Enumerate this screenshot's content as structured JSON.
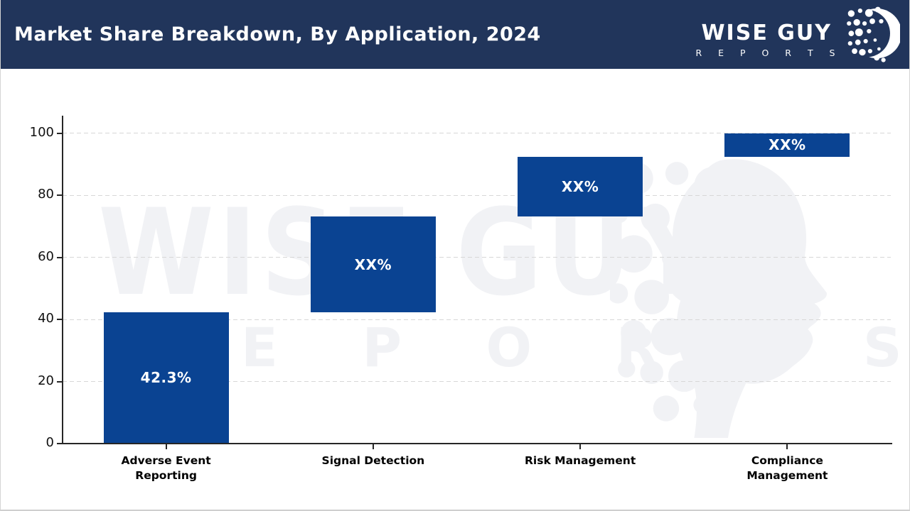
{
  "header": {
    "title": "Market Share Breakdown, By Application, 2024",
    "bg_color": "#21355B",
    "logo": {
      "line1": "WISE GUY",
      "line2": "R E P O R T S",
      "head_icon": "dotted-head-profile-icon"
    }
  },
  "watermark": {
    "line1": "WISE GUY",
    "line2": "R E P O R T S",
    "head_icon": "dotted-head-profile-watermark",
    "color": "#f1f2f5"
  },
  "chart_data": {
    "type": "bar",
    "subtype": "waterfall-stacked",
    "title": "",
    "xlabel": "",
    "ylabel": "",
    "categories": [
      "Adverse Event Reporting",
      "Signal Detection",
      "Risk Management",
      "Compliance Management"
    ],
    "segments": [
      {
        "category": "Adverse Event Reporting",
        "start": 0,
        "end": 42.3,
        "label": "42.3%"
      },
      {
        "category": "Signal Detection",
        "start": 42.3,
        "end": 73.1,
        "label": "XX%"
      },
      {
        "category": "Risk Management",
        "start": 73.1,
        "end": 92.3,
        "label": "XX%"
      },
      {
        "category": "Compliance Management",
        "start": 92.3,
        "end": 100,
        "label": "XX%"
      }
    ],
    "yticks": [
      0,
      20,
      40,
      60,
      80,
      100
    ],
    "ylim": [
      0,
      105
    ],
    "grid": "horizontal-dashed",
    "legend": "none",
    "bar_color": "#0a4392",
    "bar_label_color": "#ffffff",
    "axis_color": "#262626",
    "gridline_color": "#d7d7d7"
  }
}
